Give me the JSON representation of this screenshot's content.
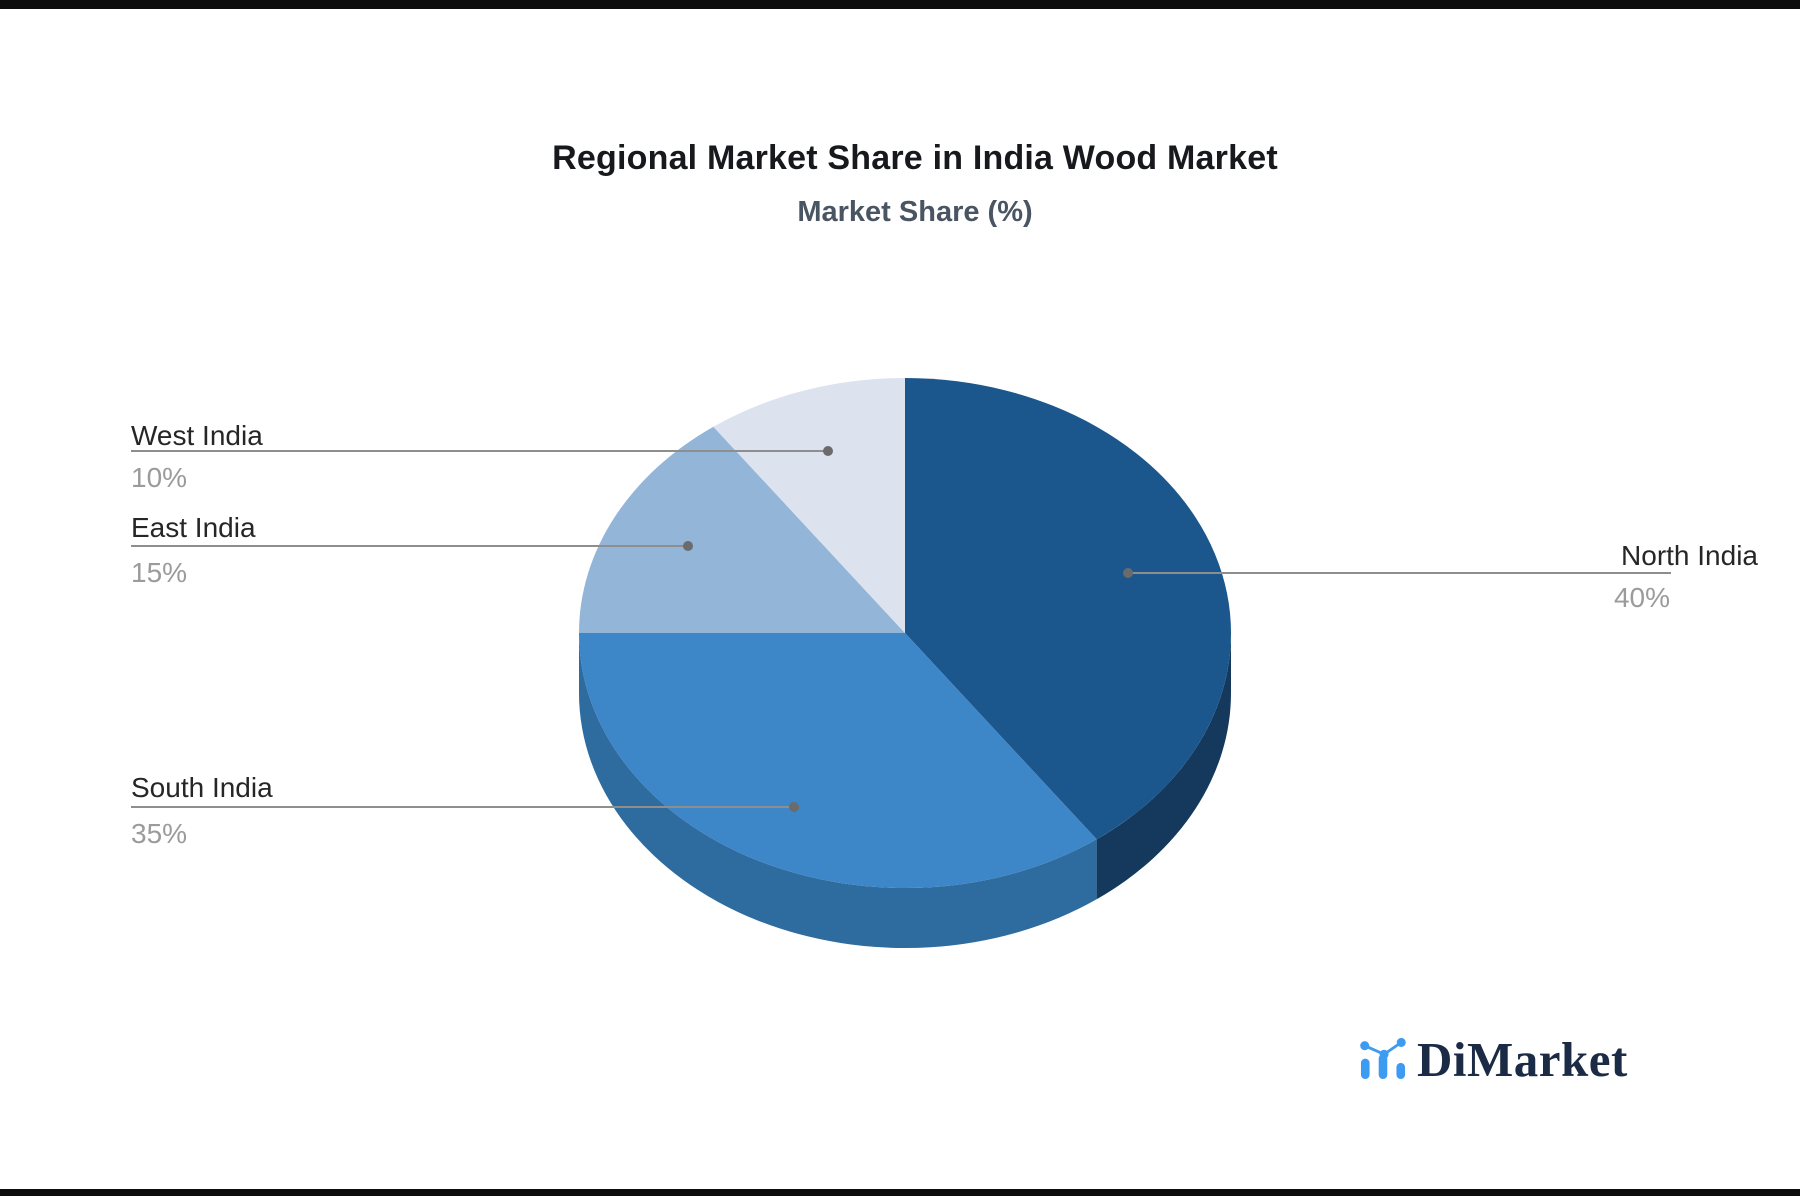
{
  "title": "Regional Market Share in India Wood Market",
  "subtitle": "Market Share (%)",
  "brand": {
    "name": "DiMarket"
  },
  "callouts": [
    {
      "label": "West India",
      "pct": "10%"
    },
    {
      "label": "East India",
      "pct": "15%"
    },
    {
      "label": "South India",
      "pct": "35%"
    },
    {
      "label": "North India",
      "pct": "40%"
    }
  ],
  "chart_data": {
    "type": "pie",
    "title": "Regional Market Share in India Wood Market",
    "subtitle": "Market Share (%)",
    "unit": "percent",
    "style": "3d",
    "start_angle": "12-o-clock",
    "direction": "clockwise",
    "legend_position": "callout-labels",
    "slices": [
      {
        "label": "North India",
        "value": 40,
        "color": "#1B578C",
        "rim_color": "#14395C"
      },
      {
        "label": "South India",
        "value": 35,
        "color": "#3D86C8",
        "rim_color": "#2E6B9E"
      },
      {
        "label": "East India",
        "value": 15,
        "color": "#93B5D8",
        "rim_color": "#7FA5CB"
      },
      {
        "label": "West India",
        "value": 10,
        "color": "#DCE3EF",
        "rim_color": "#C5CFDE"
      }
    ],
    "colors": {
      "callout_line": "#8E8E8E",
      "callout_dot": "#6B6B6B",
      "label_text": "#262626",
      "percent_text": "#9B9B9B",
      "title_text": "#17191D",
      "subtitle_text": "#4A5564",
      "brand_text": "#1B2B46",
      "brand_icon_blue": "#3D9BF2",
      "background": "#FFFFFF"
    }
  }
}
